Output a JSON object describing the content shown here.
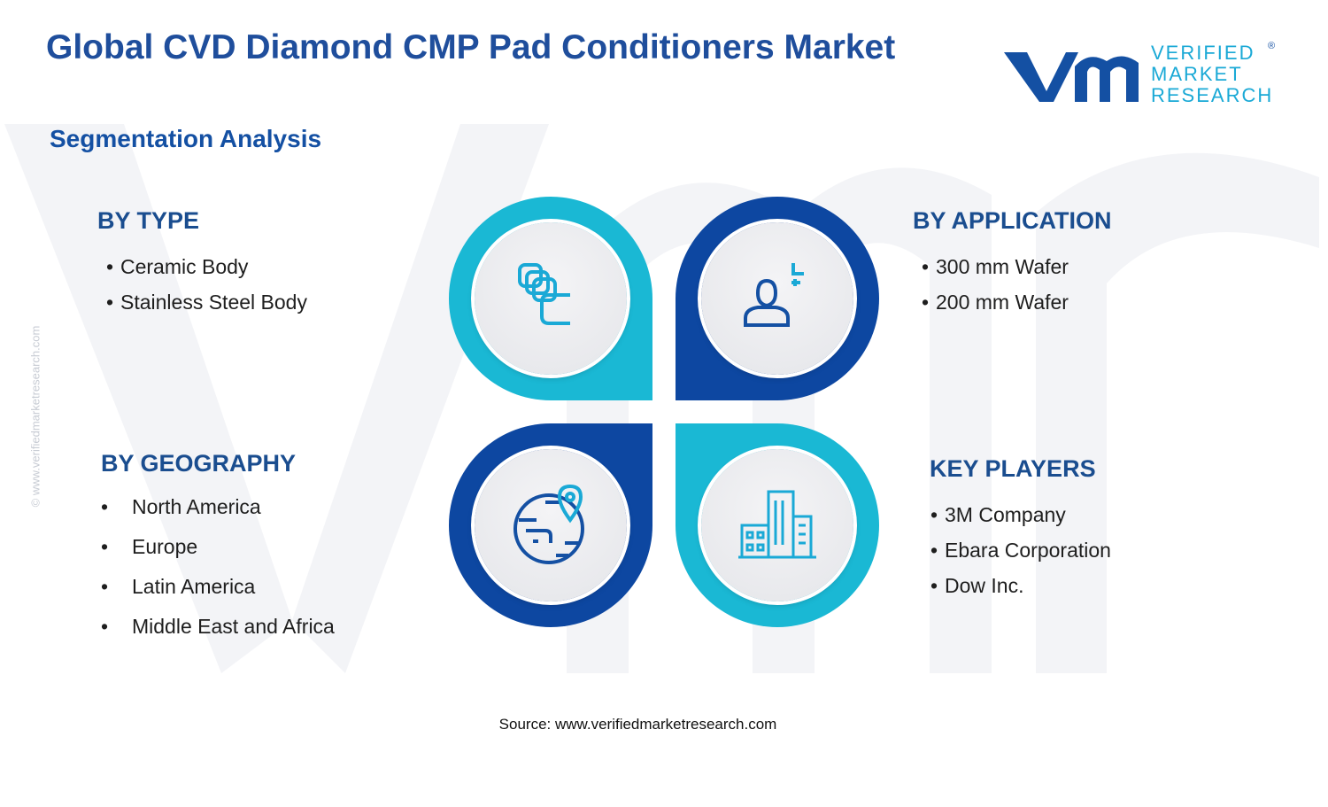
{
  "header": {
    "title": "Global CVD Diamond CMP Pad Conditioners Market",
    "subtitle": "Segmentation Analysis",
    "logo": {
      "line1": "VERIFIED",
      "line2": "MARKET",
      "line3": "RESEARCH",
      "mark": "®"
    }
  },
  "segments": [
    {
      "title": "BY TYPE",
      "items": [
        "Ceramic Body",
        "Stainless Steel Body"
      ]
    },
    {
      "title": "BY APPLICATION",
      "items": [
        "300 mm Wafer",
        "200 mm Wafer"
      ]
    },
    {
      "title": "BY GEOGRAPHY",
      "items": [
        "North America",
        "Europe",
        "Latin America",
        "Middle East and Africa"
      ]
    },
    {
      "title": "KEY PLAYERS",
      "items": [
        "3M Company",
        "Ebara Corporation",
        "Dow Inc."
      ]
    }
  ],
  "source": "Source: www.verifiedmarketresearch.com",
  "side_note": "© www.verifiedmarketresearch.com"
}
